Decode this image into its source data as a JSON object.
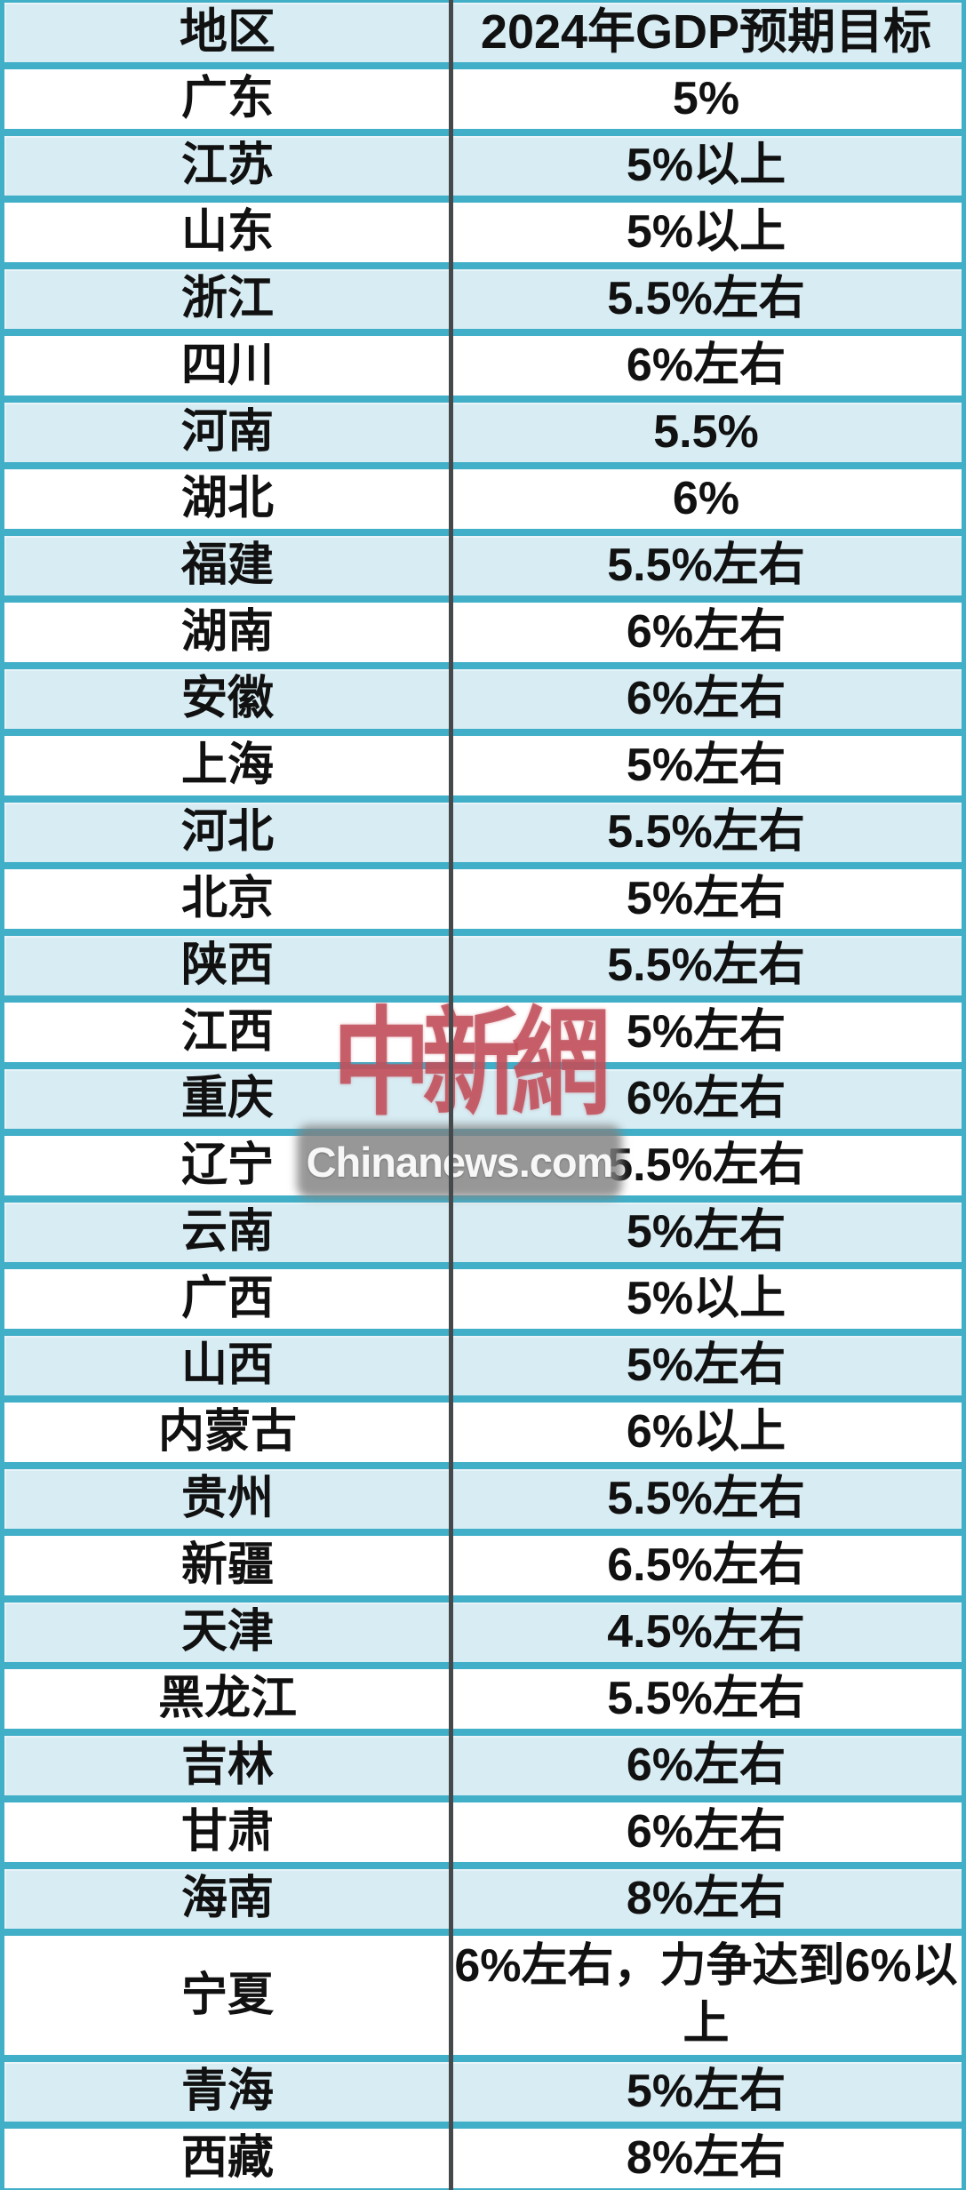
{
  "table": {
    "header": {
      "region": "地区",
      "target": "2024年GDP预期目标"
    },
    "rows": [
      {
        "region": "广东",
        "target": "5%"
      },
      {
        "region": "江苏",
        "target": "5%以上"
      },
      {
        "region": "山东",
        "target": "5%以上"
      },
      {
        "region": "浙江",
        "target": "5.5%左右"
      },
      {
        "region": "四川",
        "target": "6%左右"
      },
      {
        "region": "河南",
        "target": "5.5%"
      },
      {
        "region": "湖北",
        "target": "6%"
      },
      {
        "region": "福建",
        "target": "5.5%左右"
      },
      {
        "region": "湖南",
        "target": "6%左右"
      },
      {
        "region": "安徽",
        "target": "6%左右"
      },
      {
        "region": "上海",
        "target": "5%左右"
      },
      {
        "region": "河北",
        "target": "5.5%左右"
      },
      {
        "region": "北京",
        "target": "5%左右"
      },
      {
        "region": "陕西",
        "target": "5.5%左右"
      },
      {
        "region": "江西",
        "target": "5%左右"
      },
      {
        "region": "重庆",
        "target": "6%左右"
      },
      {
        "region": "辽宁",
        "target": "5.5%左右"
      },
      {
        "region": "云南",
        "target": "5%左右"
      },
      {
        "region": "广西",
        "target": "5%以上"
      },
      {
        "region": "山西",
        "target": "5%左右"
      },
      {
        "region": "内蒙古",
        "target": "6%以上"
      },
      {
        "region": "贵州",
        "target": "5.5%左右"
      },
      {
        "region": "新疆",
        "target": "6.5%左右"
      },
      {
        "region": "天津",
        "target": "4.5%左右"
      },
      {
        "region": "黑龙江",
        "target": "5.5%左右"
      },
      {
        "region": "吉林",
        "target": "6%左右"
      },
      {
        "region": "甘肃",
        "target": "6%左右"
      },
      {
        "region": "海南",
        "target": "8%左右"
      },
      {
        "region": "宁夏",
        "target": "6%左右，力争达到6%以上"
      },
      {
        "region": "青海",
        "target": "5%左右"
      },
      {
        "region": "西藏",
        "target": "8%左右"
      }
    ],
    "tall_row_region": "宁夏"
  },
  "watermark": {
    "logo_text": "中新網",
    "site_text": "Chinanews.com"
  },
  "colors": {
    "teal_border": "#41afc8",
    "row_white": "#ffffff",
    "row_blue": "#d7ecf3",
    "column_divider": "#46494b",
    "text": "#111111",
    "watermark_red": "#c14f5a",
    "watermark_band_gray": "#808080",
    "watermark_site_text": "#f7f7f7"
  }
}
